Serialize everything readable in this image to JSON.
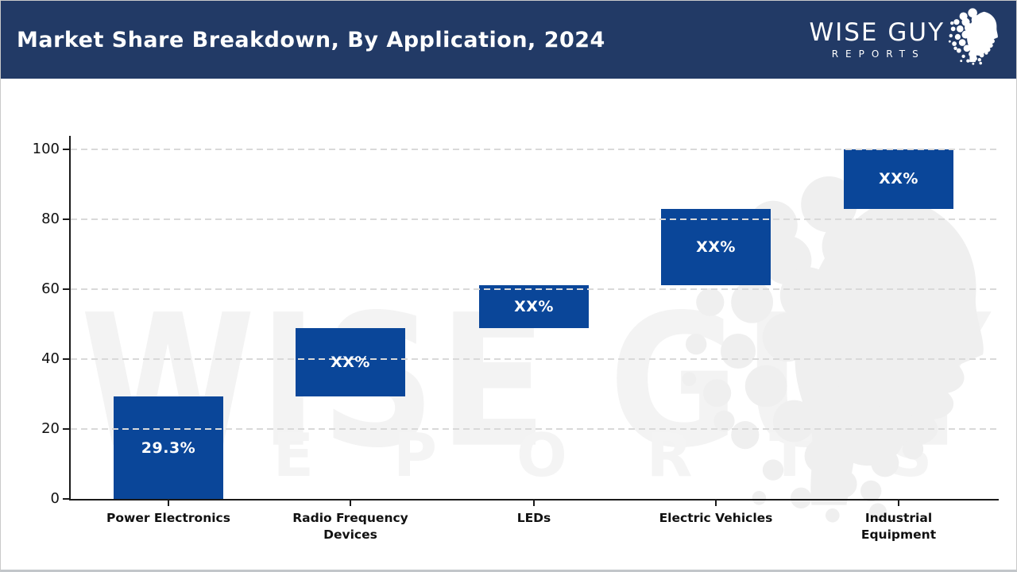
{
  "header": {
    "title": "Market Share Breakdown, By Application, 2024",
    "logo": {
      "line1": "WISE GUY",
      "line2": "REPORTS"
    },
    "bg_color": "#223A66"
  },
  "watermark": {
    "line1": "WISE GUY",
    "line2": "REPORTS"
  },
  "chart_data": {
    "type": "bar",
    "subtype": "waterfall",
    "title": "Market Share Breakdown, By Application, 2024",
    "categories": [
      "Power Electronics",
      "Radio Frequency\nDevices",
      "LEDs",
      "Electric Vehicles",
      "Industrial\nEquipment"
    ],
    "segments": [
      {
        "category": "Power Electronics",
        "start": 0,
        "end": 29.3,
        "label": "29.3%"
      },
      {
        "category": "Radio Frequency\nDevices",
        "start": 29.3,
        "end": 48.9,
        "label": "XX%"
      },
      {
        "category": "LEDs",
        "start": 48.9,
        "end": 61.2,
        "label": "XX%"
      },
      {
        "category": "Electric Vehicles",
        "start": 61.2,
        "end": 83.0,
        "label": "XX%"
      },
      {
        "category": "Industrial\nEquipment",
        "start": 83.0,
        "end": 100.0,
        "label": "XX%"
      }
    ],
    "ylim": [
      0,
      100
    ],
    "yticks": [
      0,
      20,
      40,
      60,
      80,
      100
    ],
    "grid": "dashed horizontal, drawn over bars",
    "legend": "none",
    "bar_color": "#0A4699",
    "bar_value_label_color": "#ffffff",
    "axis_color": "#1a1a1a"
  }
}
